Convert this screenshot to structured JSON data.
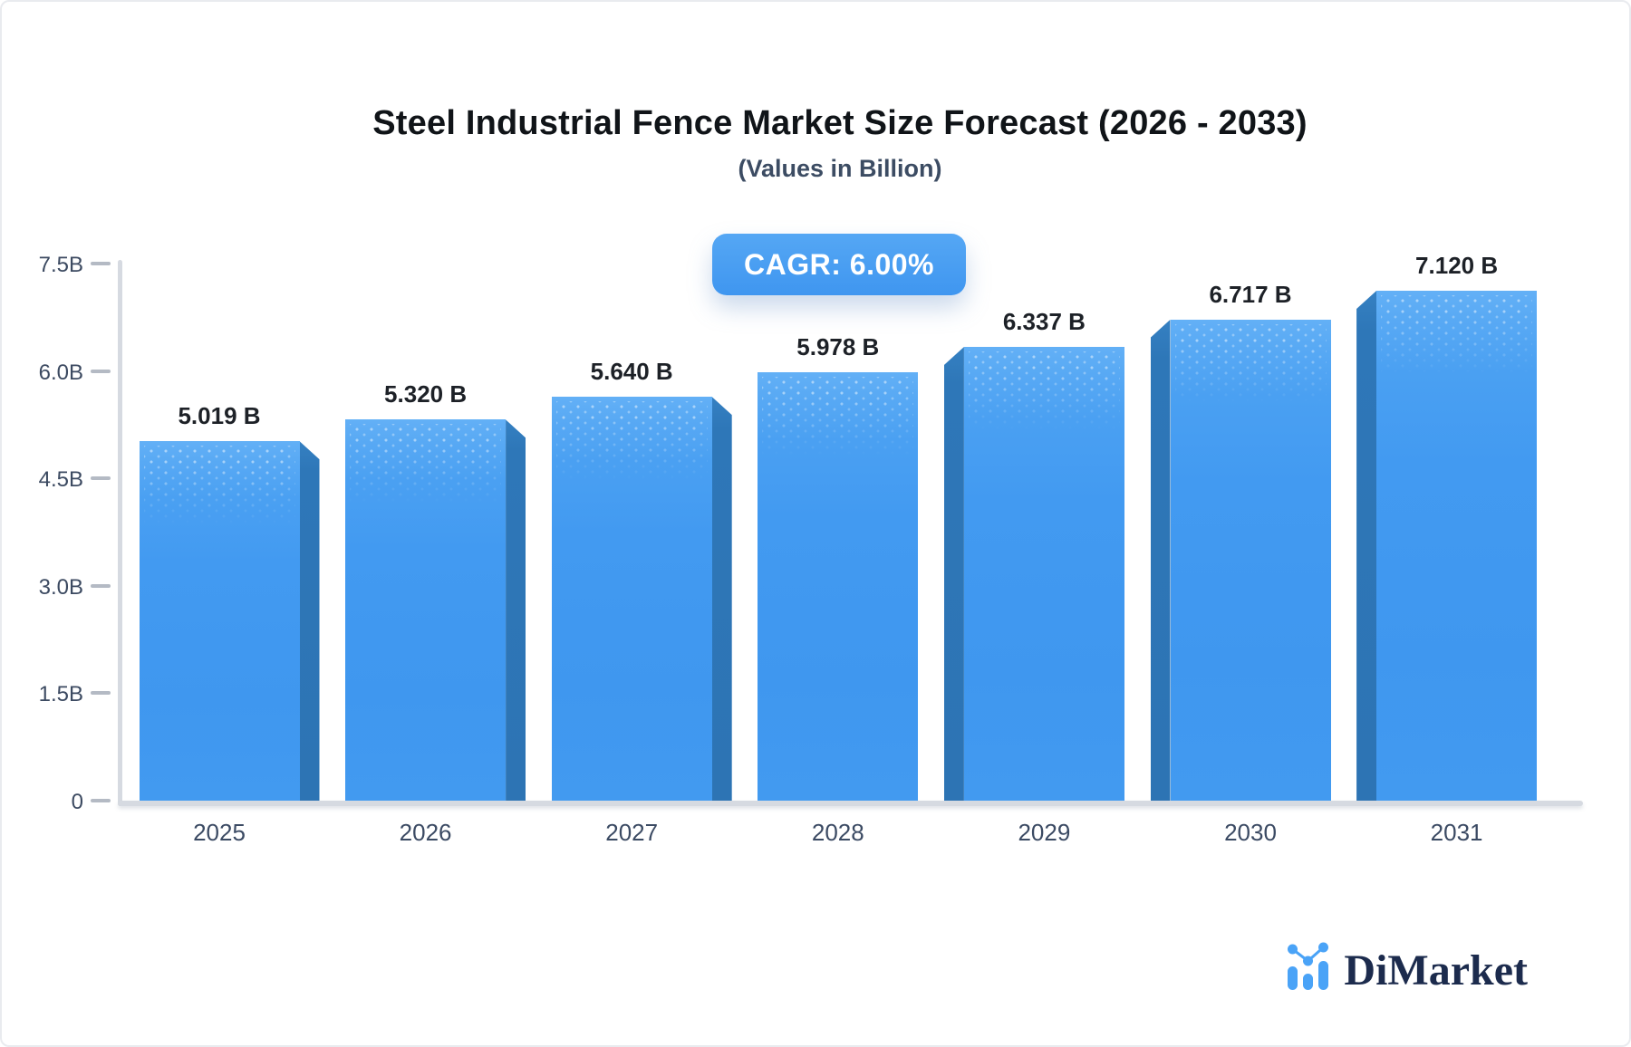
{
  "header": {
    "title": "Steel Industrial Fence Market Size Forecast (2026 - 2033)",
    "subtitle": "(Values in Billion)",
    "cagr_badge": "CAGR: 6.00%"
  },
  "chart_data": {
    "type": "bar",
    "title": "Steel Industrial Fence Market Size Forecast (2026 - 2033)",
    "subtitle": "(Values in Billion)",
    "categories": [
      "2025",
      "2026",
      "2027",
      "2028",
      "2029",
      "2030",
      "2031"
    ],
    "values": [
      5.019,
      5.32,
      5.64,
      5.978,
      6.337,
      6.717,
      7.12
    ],
    "value_labels": [
      "5.019 B",
      "5.320 B",
      "5.640 B",
      "5.978 B",
      "6.337 B",
      "6.717 B",
      "7.120 B"
    ],
    "xlabel": "",
    "ylabel": "",
    "ylim": [
      0,
      7.5
    ],
    "ytick_values": [
      0,
      1.5,
      3.0,
      4.5,
      6.0,
      7.5
    ],
    "ytick_labels": [
      "0",
      "1.5B",
      "3.0B",
      "4.5B",
      "6.0B",
      "7.5B"
    ],
    "grid": false,
    "legend_position": "none",
    "annotation": "CAGR: 6.00%",
    "unit": "Billion"
  },
  "colors": {
    "bar_face": "#429af1",
    "bar_face_top": "#63b0f6",
    "bar_side_3d": "#2e77b8",
    "badge_bg": "#4498f1",
    "badge_text": "#ffffff",
    "axis_line": "#d6dae1",
    "tick_dash": "#b4bac4",
    "axis_text": "#3c4a61",
    "value_text": "#1d2127",
    "title_text": "#101418",
    "logo_navy": "#1c2b4d",
    "logo_blue": "#4aa3f7"
  },
  "logo": {
    "name": "DiMarket",
    "icon": "bar-chart-sparkline-icon"
  }
}
